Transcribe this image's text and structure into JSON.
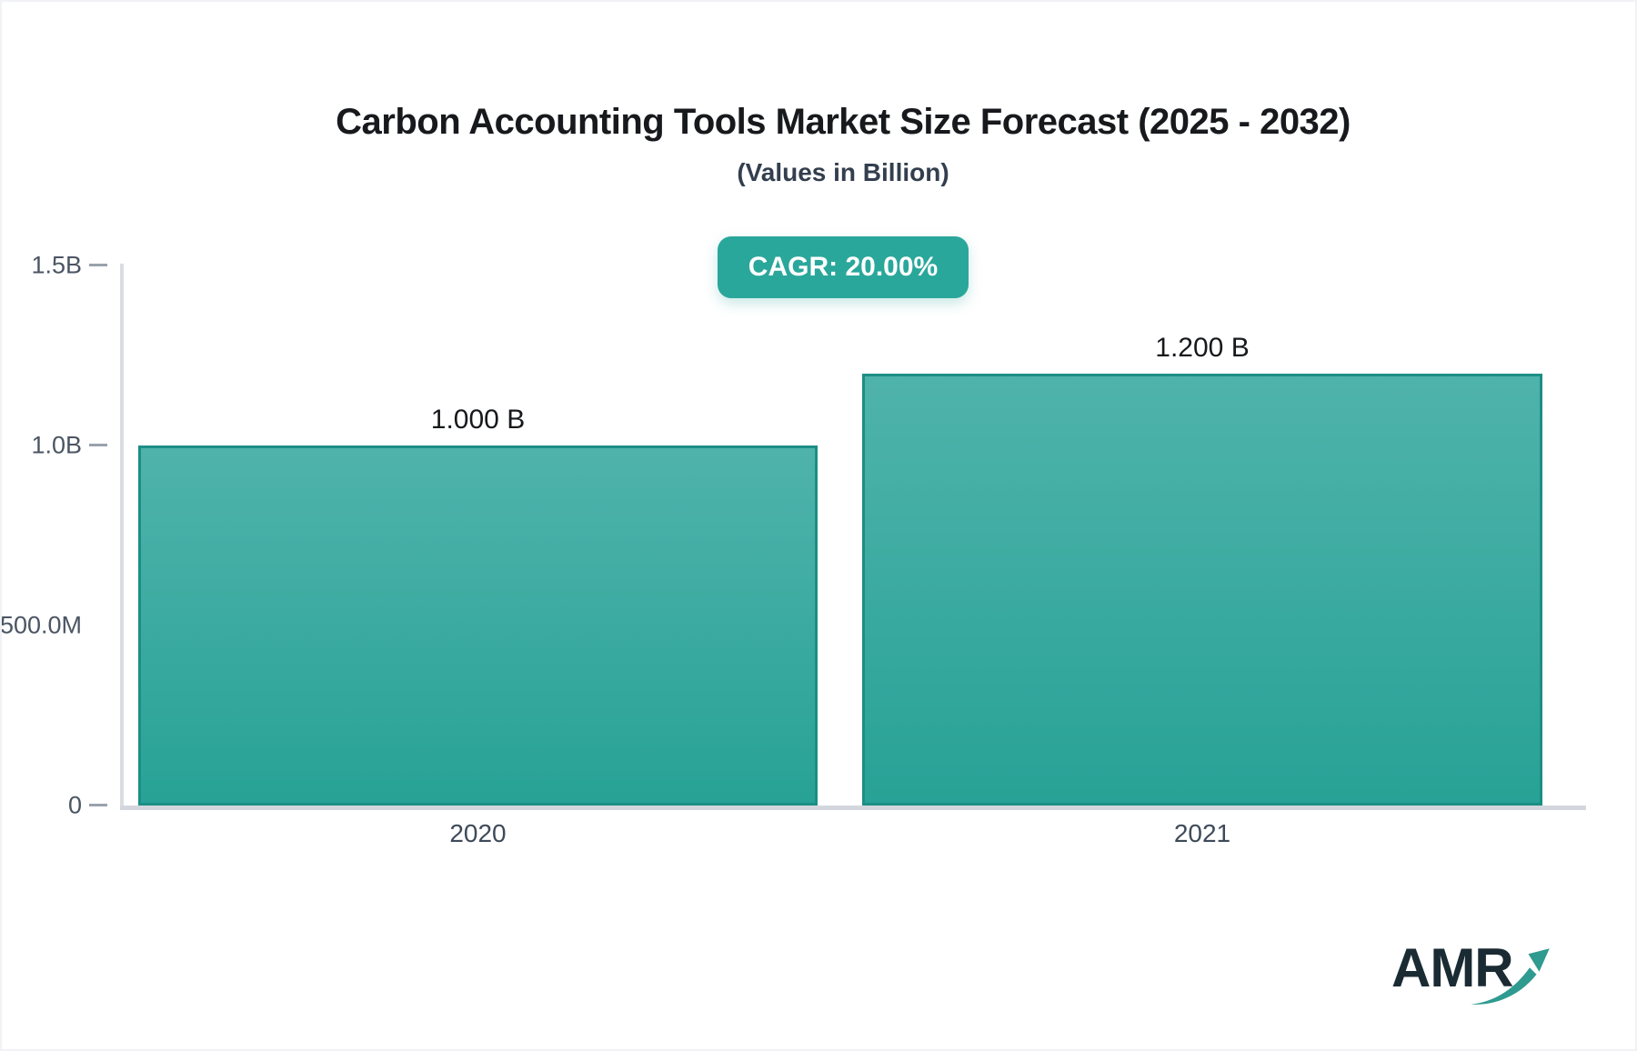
{
  "header": {
    "title": "Carbon Accounting Tools Market Size Forecast (2025 - 2032)",
    "subtitle": "(Values in Billion)",
    "badge_label": "CAGR: 20.00%"
  },
  "chart_data": {
    "type": "bar",
    "title": "Carbon Accounting Tools Market Size Forecast (2025 - 2032)",
    "subtitle": "(Values in Billion)",
    "categories": [
      "2020",
      "2021"
    ],
    "values": [
      1.0,
      1.2
    ],
    "value_labels": [
      "1.000 B",
      "1.200 B"
    ],
    "unit": "B",
    "ylim": [
      0,
      1.5
    ],
    "yticks": [
      {
        "label": "1.5B",
        "value": 1.5,
        "dash": true
      },
      {
        "label": "1.0B",
        "value": 1.0,
        "dash": true
      },
      {
        "label": "500.0M",
        "value": 0.5,
        "dash": false
      },
      {
        "label": "0",
        "value": 0,
        "dash": true
      }
    ],
    "grid": false,
    "legend": false,
    "cagr_percent": "20.00%",
    "bar_gradient": [
      "#4fb3ab",
      "#28a296"
    ]
  },
  "logo": {
    "text": "AMR"
  },
  "colors": {
    "background": "#ffffff",
    "canvas-border": "#f0f2f5",
    "title": "#17191d",
    "subtitle": "#333e4e",
    "badge-bg": "#2aa79b",
    "badge-text": "#ffffff",
    "bar-top": "#4fb3ab",
    "bar-bottom": "#28a296",
    "bar-border": "#1d8e85",
    "axis-line": "#d9dde2",
    "baseline": "#d3d7dd",
    "tick-dash": "#99a2ac",
    "ylabel": "#4b5563",
    "xlabel": "#3e4a59",
    "value-label": "#17191c",
    "logo-text": "#1b2b33",
    "logo-arrow": "#2f9a90"
  }
}
